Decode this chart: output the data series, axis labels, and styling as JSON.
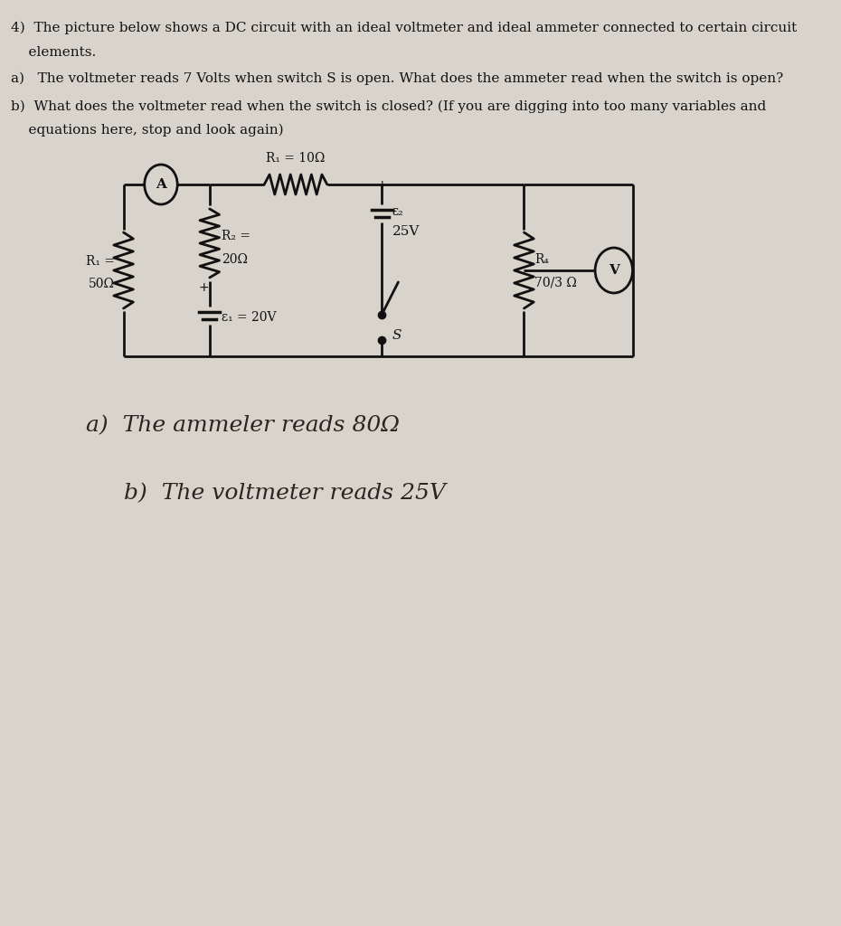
{
  "bg_color": "#d8d4cc",
  "line_color": "#111111",
  "text_color": "#111111",
  "title_line1": "4)  The picture below shows a DC circuit with an ideal voltmeter and ideal ammeter connected to certain circuit",
  "title_line2": "    elements.",
  "question_a": "a)   The voltmeter reads 7 Volts when switch S is open. What does the ammeter read when the switch is open?",
  "question_b1": "b)  What does the voltmeter read when the switch is closed? (If you are digging into too many variables and",
  "question_b2": "    equations here, stop and look again)",
  "answer_a": "a)  The ammeler reads 80Ω",
  "answer_b": "b)  The voltmeter reads 25V",
  "circuit": {
    "R1_left_label": "R₁ =",
    "R1_left_label2": "50Ω",
    "R1_top_label": "R₁ = 10Ω",
    "R2_label1": "R₂ =",
    "R2_label2": "20Ω",
    "R4_label1": "R₄",
    "R4_label2": "70/3 Ω",
    "eps1_label": "ε₁ = 20V",
    "eps2_label1": "ε₂",
    "eps2_label2": "25V",
    "ammeter_label": "A",
    "voltmeter_label": "V",
    "switch_label": "S"
  }
}
